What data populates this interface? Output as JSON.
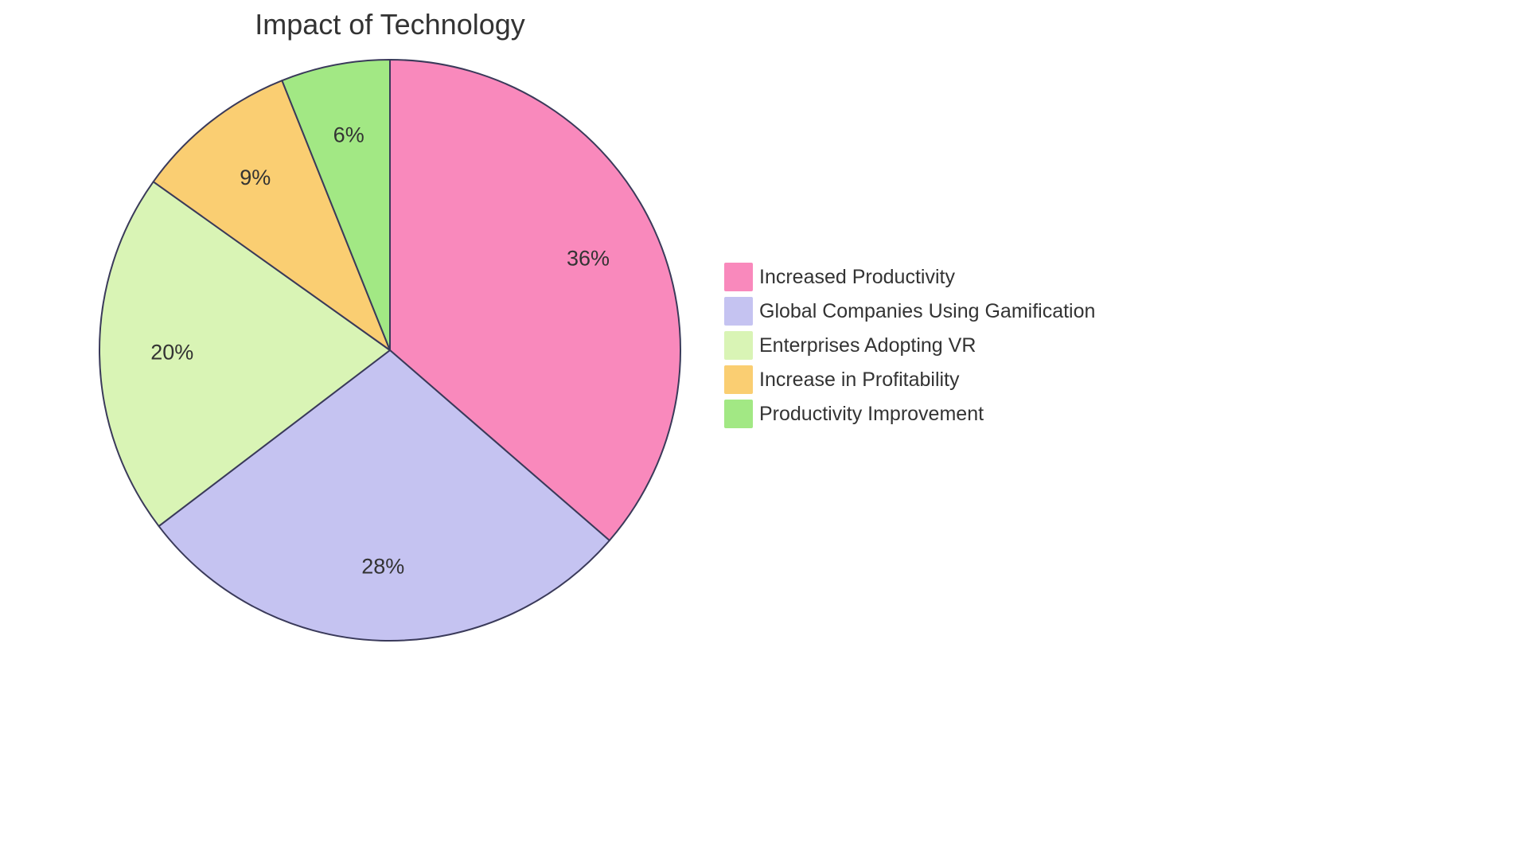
{
  "chart_data": {
    "type": "pie",
    "title": "Impact of Technology",
    "labels": [
      "Increased Productivity",
      "Global Companies Using Gamification",
      "Enterprises Adopting VR",
      "Increase in Profitability",
      "Productivity Improvement"
    ],
    "values": [
      36,
      28,
      20,
      9,
      6
    ],
    "value_labels": [
      "36%",
      "28%",
      "20%",
      "9%",
      "6%"
    ],
    "colors": [
      "#F989BC",
      "#C5C3F1",
      "#D9F4B5",
      "#FACE72",
      "#A2E884"
    ],
    "slice_border_color": "#3A3A5A",
    "label_color": "#333333",
    "start_angle_deg": 0,
    "direction": "clockwise",
    "legend_position": "right",
    "background": "#FFFFFF"
  }
}
